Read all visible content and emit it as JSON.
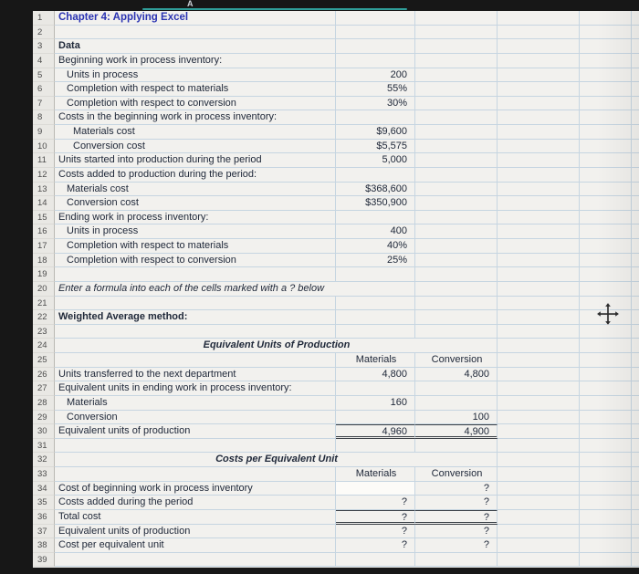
{
  "chrome": {
    "partial_column_letter": "A"
  },
  "selection": {
    "selected_cell": "B34"
  },
  "cursor": {
    "icon": "move-cursor"
  },
  "colors": {
    "paper": "#f2f1ee",
    "grid": "#c6d5e1",
    "gutterBg": "#e9e8e4",
    "gutterLine": "#b9b8b3",
    "text": "#20293a",
    "titleBlue": "#2a33b2",
    "teal": "#2f9e99",
    "green": "#1e7145",
    "dark": "#171717",
    "lineDark": "#3a3f46"
  },
  "sheet": {
    "column_headers": [
      "Materials",
      "Conversion"
    ],
    "rows": [
      {
        "n": 1,
        "a": "Chapter 4: Applying Excel",
        "style": "title"
      },
      {
        "n": 2
      },
      {
        "n": 3,
        "a": "Data",
        "style": "bold"
      },
      {
        "n": 4,
        "a": "Beginning work in process inventory:"
      },
      {
        "n": 5,
        "a": "Units in process",
        "indent": 1,
        "b": "200"
      },
      {
        "n": 6,
        "a": "Completion with respect to materials",
        "indent": 1,
        "b": "55%"
      },
      {
        "n": 7,
        "a": "Completion with respect to conversion",
        "indent": 1,
        "b": "30%"
      },
      {
        "n": 8,
        "a": "Costs in the beginning work in process inventory:"
      },
      {
        "n": 9,
        "a": "Materials cost",
        "indent": 2,
        "b": "$9,600"
      },
      {
        "n": 10,
        "a": "Conversion cost",
        "indent": 2,
        "b": "$5,575"
      },
      {
        "n": 11,
        "a": "Units started into production during the period",
        "b": "5,000"
      },
      {
        "n": 12,
        "a": "Costs added to production during the period:"
      },
      {
        "n": 13,
        "a": "Materials cost",
        "indent": 1,
        "b": "$368,600"
      },
      {
        "n": 14,
        "a": "Conversion cost",
        "indent": 1,
        "b": "$350,900"
      },
      {
        "n": 15,
        "a": "Ending work in process inventory:"
      },
      {
        "n": 16,
        "a": "Units in process",
        "indent": 1,
        "b": "400"
      },
      {
        "n": 17,
        "a": "Completion with respect to materials",
        "indent": 1,
        "b": "40%"
      },
      {
        "n": 18,
        "a": "Completion with respect to conversion",
        "indent": 1,
        "b": "25%"
      },
      {
        "n": 19
      },
      {
        "n": 20,
        "a": "Enter a formula into each of the cells marked with a ? below",
        "style": "italic",
        "overflow": true
      },
      {
        "n": 21
      },
      {
        "n": 22,
        "a": "Weighted Average method:",
        "style": "bold"
      },
      {
        "n": 23
      },
      {
        "n": 24,
        "a": "Equivalent Units of Production",
        "style": "section",
        "merge": true
      },
      {
        "n": 25,
        "b": "Materials",
        "c": "Conversion",
        "header": true
      },
      {
        "n": 26,
        "a": "Units transferred to the next department",
        "b": "4,800",
        "c": "4,800"
      },
      {
        "n": 27,
        "a": "Equivalent units in ending work in process inventory:"
      },
      {
        "n": 28,
        "a": "Materials",
        "indent": 1,
        "b": "160"
      },
      {
        "n": 29,
        "a": "Conversion",
        "indent": 1,
        "c": "100"
      },
      {
        "n": 30,
        "a": "Equivalent units of production",
        "b": "4,960",
        "c": "4,900",
        "bBorder": "total",
        "cBorder": "total"
      },
      {
        "n": 31
      },
      {
        "n": 32,
        "a": "Costs per Equivalent Unit",
        "style": "section",
        "merge": true
      },
      {
        "n": 33,
        "b": "Materials",
        "c": "Conversion",
        "header": true
      },
      {
        "n": 34,
        "a": "Cost of beginning work in process inventory",
        "b": "",
        "c": "?",
        "bSelected": true
      },
      {
        "n": 35,
        "a": "Costs added during the period",
        "b": "?",
        "c": "?"
      },
      {
        "n": 36,
        "a": "Total cost",
        "b": "?",
        "c": "?",
        "bBorder": "total",
        "cBorder": "total"
      },
      {
        "n": 37,
        "a": "Equivalent units of production",
        "b": "?",
        "c": "?"
      },
      {
        "n": 38,
        "a": "Cost per equivalent unit",
        "b": "?",
        "c": "?"
      },
      {
        "n": 39
      }
    ]
  }
}
